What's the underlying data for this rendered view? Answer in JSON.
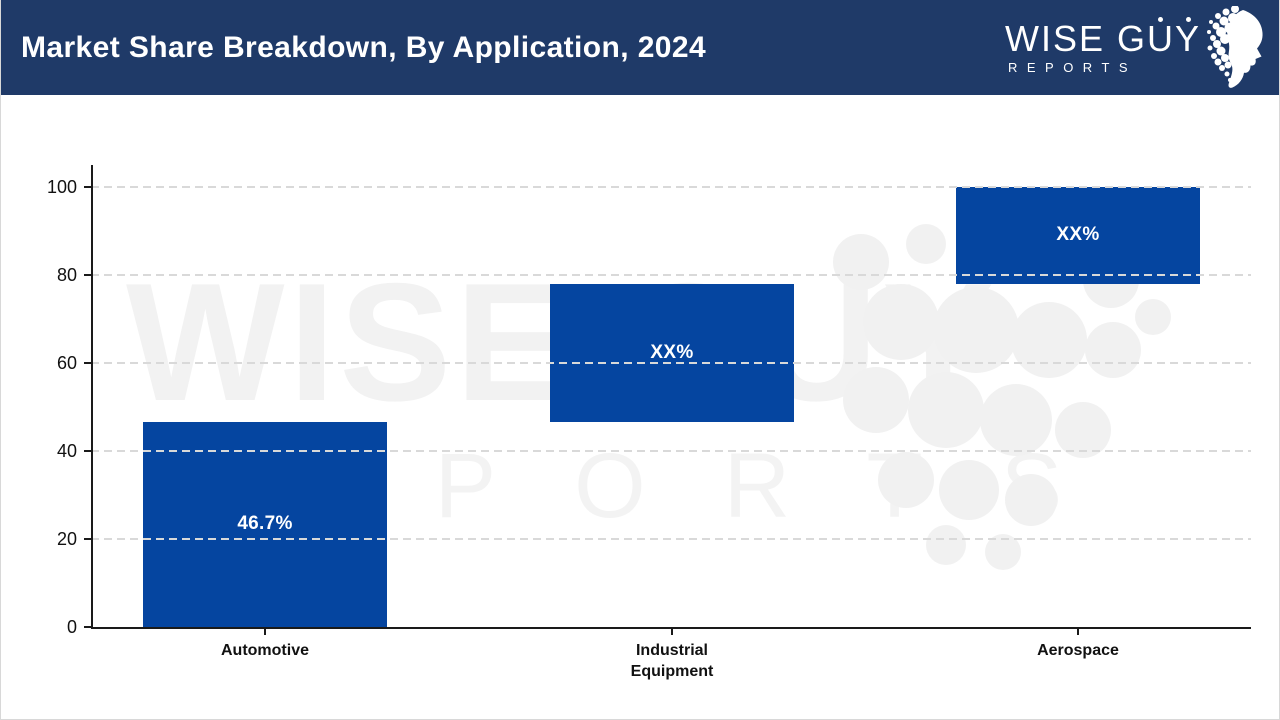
{
  "header": {
    "title": "Market Share Breakdown, By Application, 2024",
    "background": "#1f3a68",
    "logo": {
      "main": "WISE GUY",
      "sub": "REPORTS"
    }
  },
  "watermark": {
    "big": "WISE GUY",
    "small": "REPORTS"
  },
  "chart_data": {
    "type": "bar",
    "subtype": "floating-cumulative-waterfall",
    "title": "Market Share Breakdown, By Application, 2024",
    "categories": [
      "Automotive",
      "Industrial Equipment",
      "Aerospace"
    ],
    "categories_display": [
      "Automotive",
      "Industrial\nEquipment",
      "Aerospace"
    ],
    "segments": [
      {
        "category": "Automotive",
        "start": 0,
        "end": 46.7,
        "label": "46.7%"
      },
      {
        "category": "Industrial Equipment",
        "start": 46.7,
        "end": 78,
        "label": "XX%",
        "approx_value": 31.3
      },
      {
        "category": "Aerospace",
        "start": 78,
        "end": 100,
        "label": "XX%",
        "approx_value": 22
      }
    ],
    "xlabel": "",
    "ylabel": "",
    "ylim": [
      0,
      100
    ],
    "yticks": [
      0,
      20,
      40,
      60,
      80,
      100
    ],
    "grid": "horizontal-dashed",
    "grid_color": "#d9d9d9",
    "bar_color": "#0545a0",
    "bar_label_color": "#ffffff",
    "axis_color": "#1a1a1a",
    "legend": "none"
  }
}
